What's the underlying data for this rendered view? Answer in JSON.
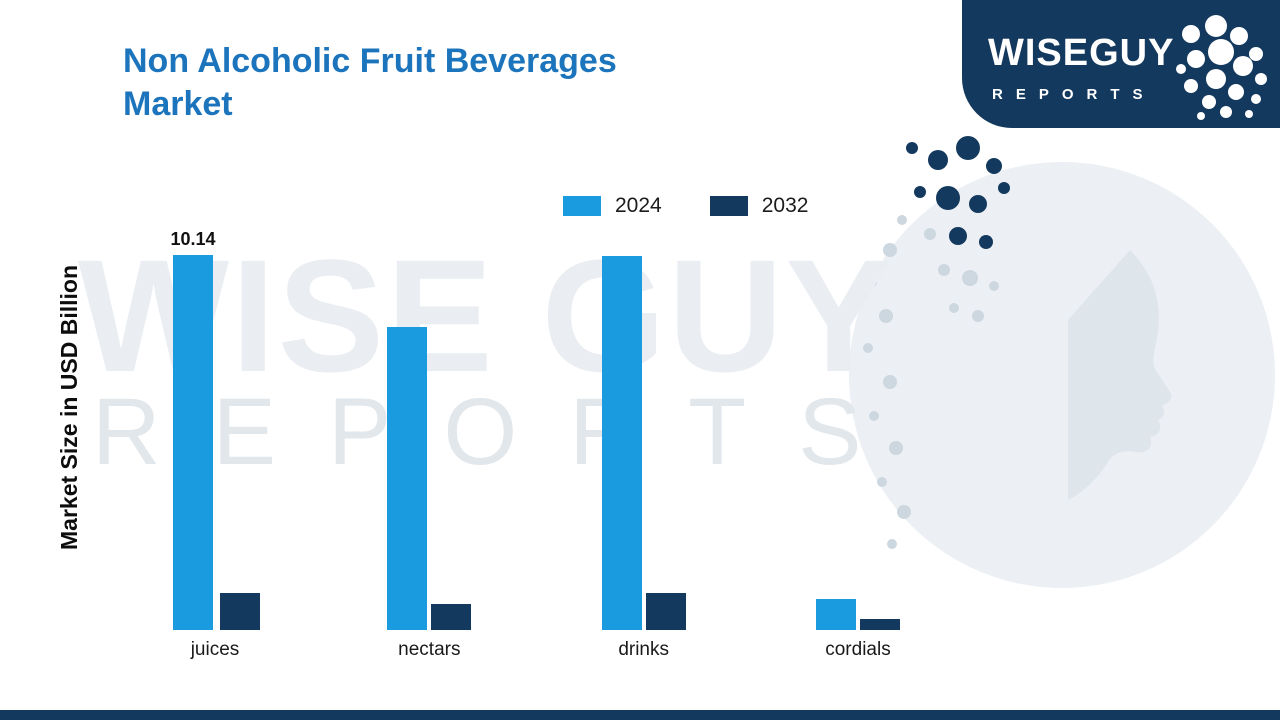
{
  "header": {
    "title": "Non Alcoholic Fruit Beverages Market"
  },
  "logo": {
    "brand": "WISEGUY",
    "sub": "REPORTS"
  },
  "watermark": {
    "brand": "WISE GUY",
    "sub": "REPORTS"
  },
  "chart_data": {
    "type": "bar",
    "title": "Non Alcoholic Fruit Beverages Market",
    "xlabel": "",
    "ylabel": "Market Size in USD Billion",
    "categories": [
      "juices",
      "nectars",
      "drinks",
      "cordials"
    ],
    "series": [
      {
        "name": "2024",
        "color": "#1A9BE0",
        "values": [
          10.14,
          8.2,
          10.1,
          0.85
        ]
      },
      {
        "name": "2032",
        "color": "#14395E",
        "values": [
          1.0,
          0.7,
          1.0,
          0.3
        ]
      }
    ],
    "ylim": [
      0,
      10.14
    ],
    "annotations": [
      {
        "category": "juices",
        "series": "2024",
        "text": "10.14"
      }
    ],
    "legend_position": "top",
    "grid": false
  },
  "colors": {
    "title_blue": "#1C75BC",
    "bar_blue": "#1A9BE0",
    "navy": "#14395E",
    "watermark_gray": "#EAEDF1"
  }
}
